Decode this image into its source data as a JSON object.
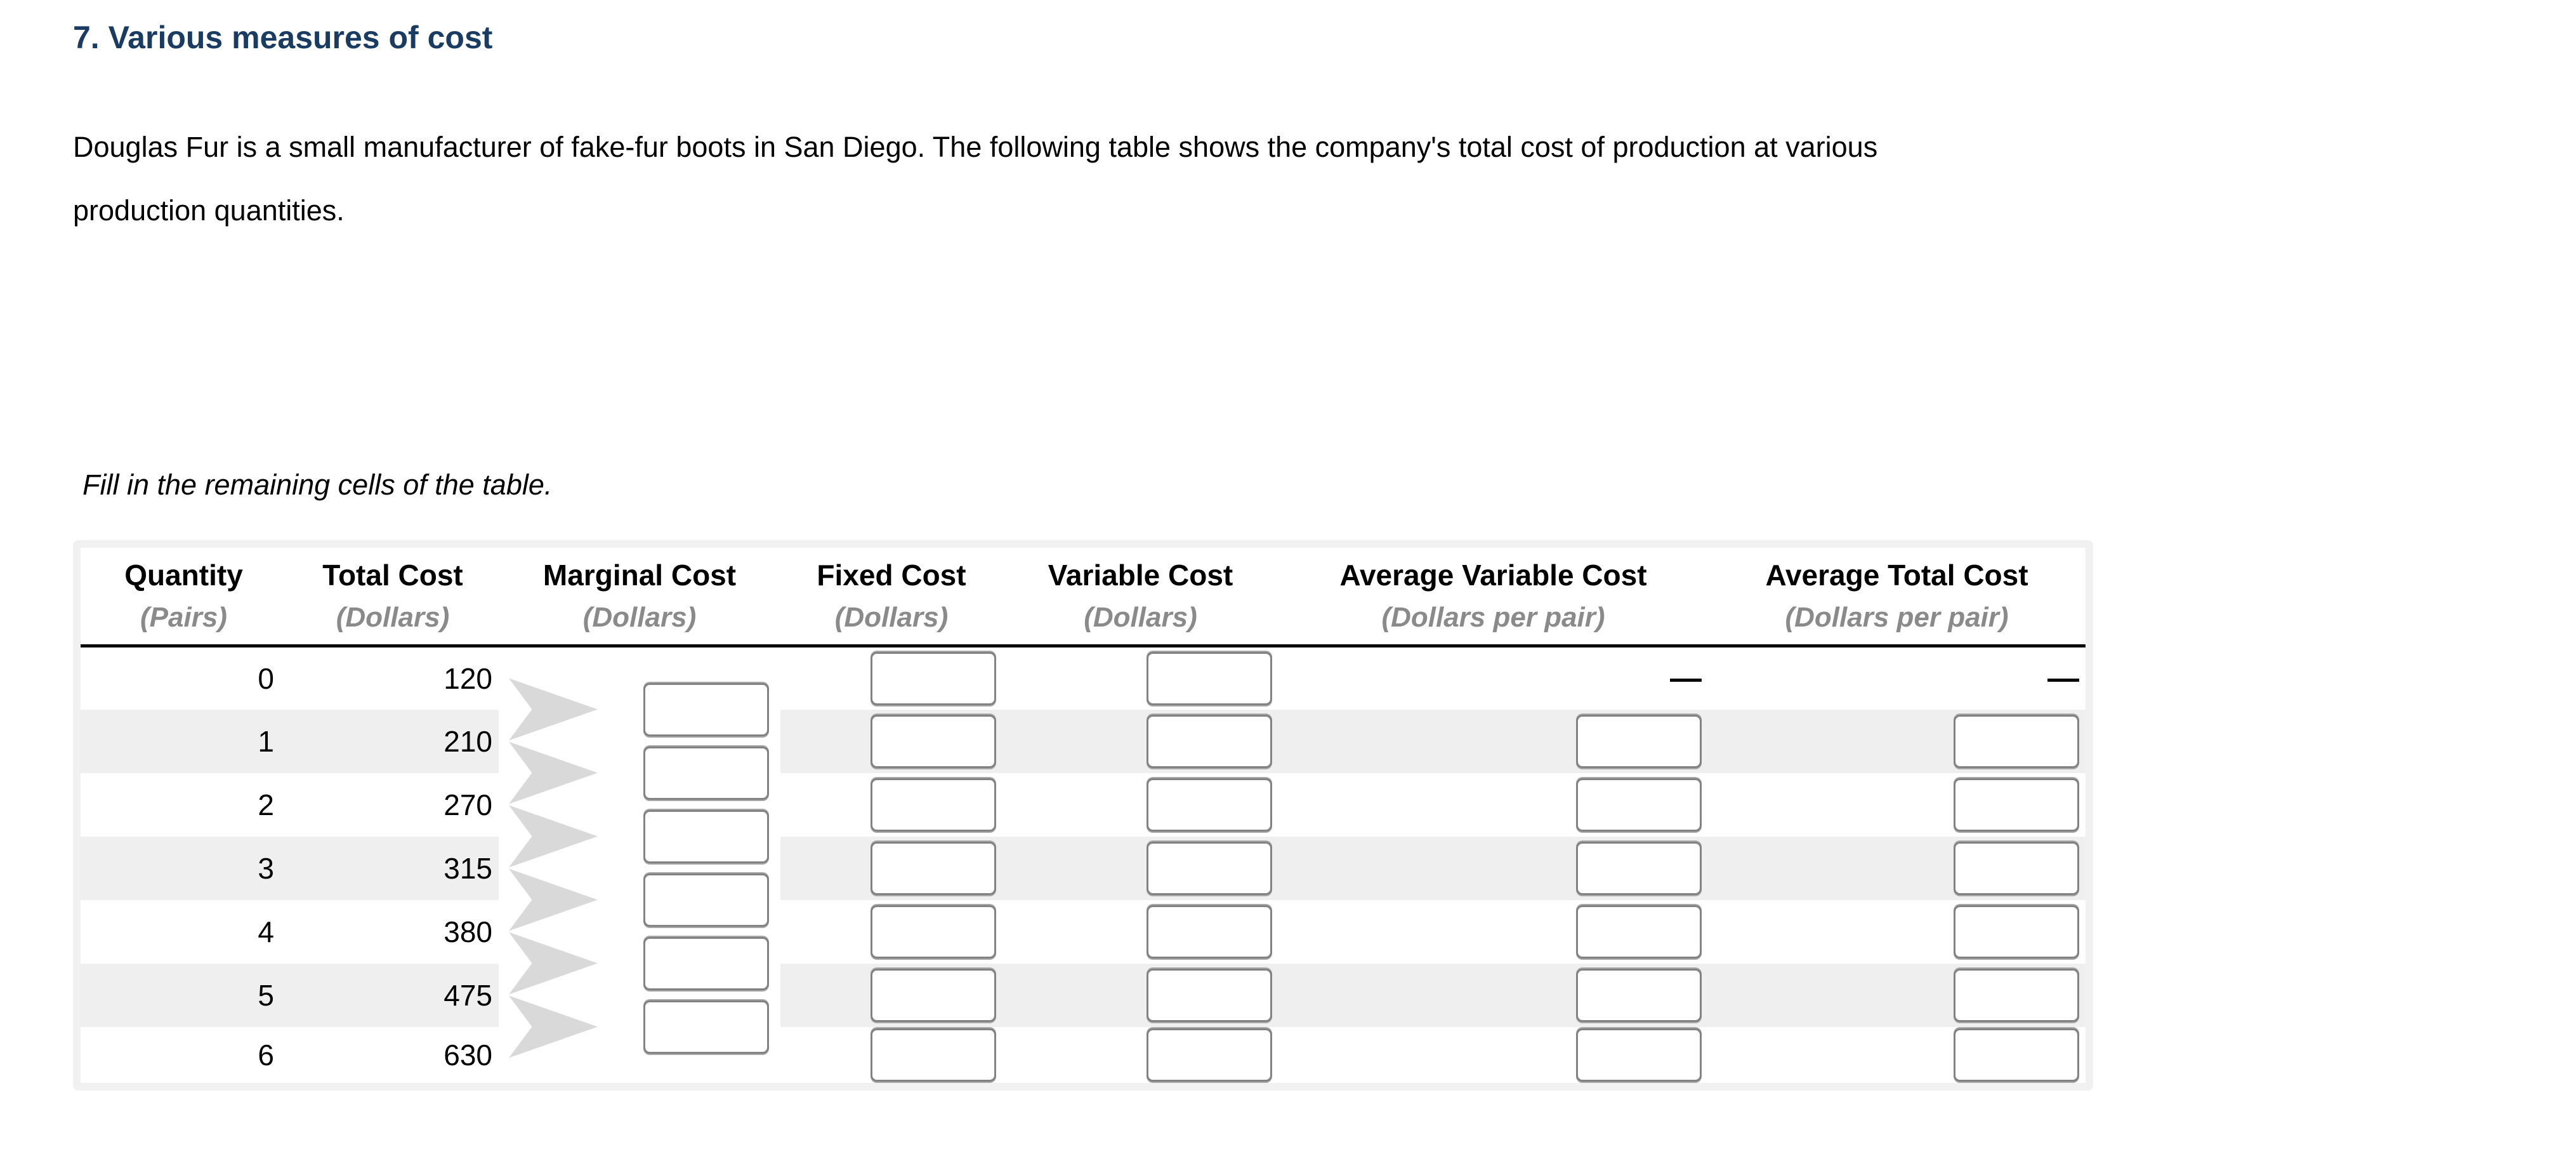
{
  "heading": {
    "title": "7. Various measures of cost"
  },
  "intro": {
    "line1": "Douglas Fur is a small manufacturer of fake-fur boots in San Diego. The following table shows the company's total cost of production at various",
    "line2": "production quantities."
  },
  "instruction": "Fill in the remaining cells of the table.",
  "table": {
    "columns": [
      {
        "label": "Quantity",
        "sub": "(Pairs)"
      },
      {
        "label": "Total Cost",
        "sub": "(Dollars)"
      },
      {
        "label": "Marginal Cost",
        "sub": "(Dollars)"
      },
      {
        "label": "Fixed Cost",
        "sub": "(Dollars)"
      },
      {
        "label": "Variable Cost",
        "sub": "(Dollars)"
      },
      {
        "label": "Average Variable Cost",
        "sub": "(Dollars per pair)"
      },
      {
        "label": "Average Total Cost",
        "sub": "(Dollars per pair)"
      }
    ],
    "rows": [
      {
        "quantity": "0",
        "total_cost": "120",
        "avg_variable_cost": "—",
        "avg_total_cost": "—"
      },
      {
        "quantity": "1",
        "total_cost": "210"
      },
      {
        "quantity": "2",
        "total_cost": "270"
      },
      {
        "quantity": "3",
        "total_cost": "315"
      },
      {
        "quantity": "4",
        "total_cost": "380"
      },
      {
        "quantity": "5",
        "total_cost": "475"
      },
      {
        "quantity": "6",
        "total_cost": "630"
      }
    ]
  },
  "colors": {
    "heading_navy": "#1b3c62",
    "row_stripe": "#efefef",
    "table_border_gray": "#f1f1f1",
    "arrow_gray": "#d9d9d9",
    "input_border": "#828282",
    "subheader_gray": "#8a8a8a"
  }
}
